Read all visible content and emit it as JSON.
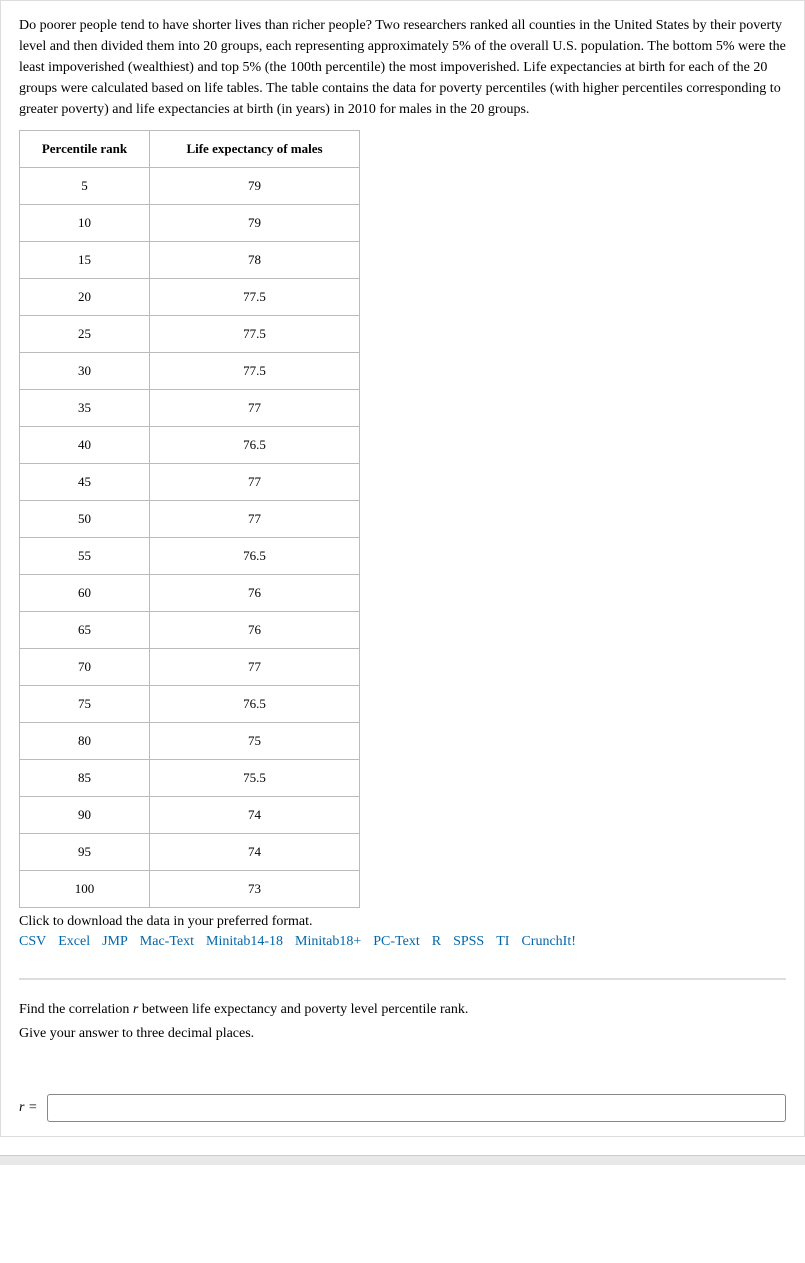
{
  "description": "Do poorer people tend to have shorter lives than richer people? Two researchers ranked all counties in the United States by their poverty level and then divided them into 20 groups, each representing approximately 5% of the overall U.S. population. The bottom 5% were the least impoverished (wealthiest) and top 5% (the 100th percentile) the most impoverished. Life expectancies at birth for each of the 20 groups were calculated based on life tables. The table contains the data for poverty percentiles (with higher percentiles corresponding to greater poverty) and life expectancies at birth (in years) in 2010 for males in the 20 groups.",
  "table": {
    "columns": [
      "Percentile rank",
      "Life expectancy of males"
    ],
    "rows": [
      [
        "5",
        "79"
      ],
      [
        "10",
        "79"
      ],
      [
        "15",
        "78"
      ],
      [
        "20",
        "77.5"
      ],
      [
        "25",
        "77.5"
      ],
      [
        "30",
        "77.5"
      ],
      [
        "35",
        "77"
      ],
      [
        "40",
        "76.5"
      ],
      [
        "45",
        "77"
      ],
      [
        "50",
        "77"
      ],
      [
        "55",
        "76.5"
      ],
      [
        "60",
        "76"
      ],
      [
        "65",
        "76"
      ],
      [
        "70",
        "77"
      ],
      [
        "75",
        "76.5"
      ],
      [
        "80",
        "75"
      ],
      [
        "85",
        "75.5"
      ],
      [
        "90",
        "74"
      ],
      [
        "95",
        "74"
      ],
      [
        "100",
        "73"
      ]
    ],
    "border_color": "#bbbbbb",
    "header_fontsize": 13,
    "cell_fontsize": 13
  },
  "download": {
    "intro": "Click to download the data in your preferred format.",
    "links": [
      "CSV",
      "Excel",
      "JMP",
      "Mac-Text",
      "Minitab14-18",
      "Minitab18+",
      "PC-Text",
      "R",
      "SPSS",
      "TI",
      "CrunchIt!"
    ],
    "link_color": "#0066aa"
  },
  "question": {
    "line1_pre": "Find the correlation ",
    "line1_var": "r",
    "line1_post": " between life expectancy and poverty level percentile rank.",
    "line2": "Give your answer to three decimal places."
  },
  "answer": {
    "label": "r =",
    "value": ""
  }
}
